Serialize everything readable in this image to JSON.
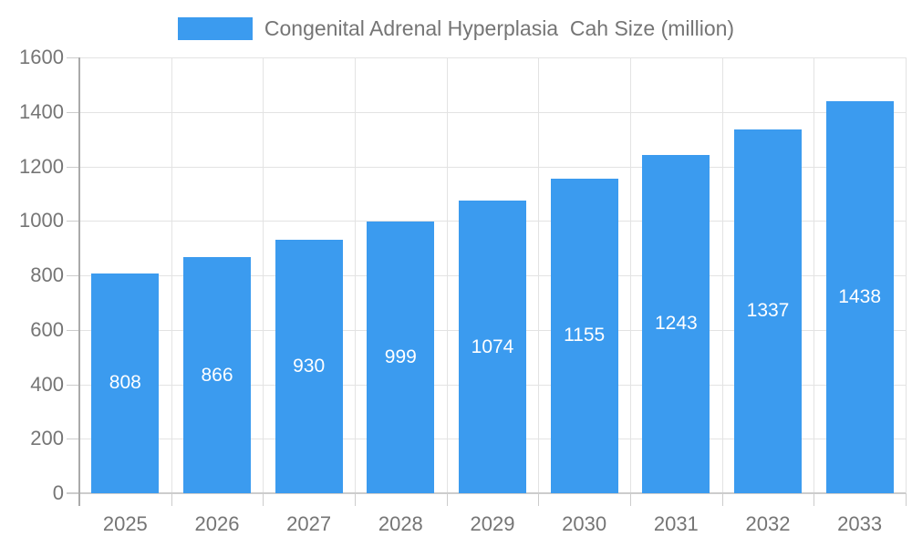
{
  "chart_data": {
    "type": "bar",
    "categories": [
      "2025",
      "2026",
      "2027",
      "2028",
      "2029",
      "2030",
      "2031",
      "2032",
      "2033"
    ],
    "series": [
      {
        "name": "Congenital Adrenal Hyperplasia  Cah Size (million)",
        "values": [
          808,
          866,
          930,
          999,
          1074,
          1155,
          1243,
          1337,
          1438
        ]
      }
    ],
    "title": "Congenital Adrenal Hyperplasia  Cah Size (million)",
    "xlabel": "",
    "ylabel": "",
    "ylim": [
      0,
      1600
    ],
    "ytick_step": 200,
    "yticks": [
      0,
      200,
      400,
      600,
      800,
      1000,
      1200,
      1400,
      1600
    ],
    "grid": true,
    "legend_position": "top-center",
    "value_labels": "inside-center",
    "colors": {
      "bar": "#3B9BEF",
      "bar_value_label": "#FFFFFF",
      "axis_text": "#757575",
      "legend_text": "#757575",
      "y_axis_line": "#AAAAAA",
      "x_axis_line": "#CCCCCC",
      "tick": "#CCCCCC",
      "gridline": "#E3E3E3",
      "background": "#FFFFFF"
    }
  }
}
